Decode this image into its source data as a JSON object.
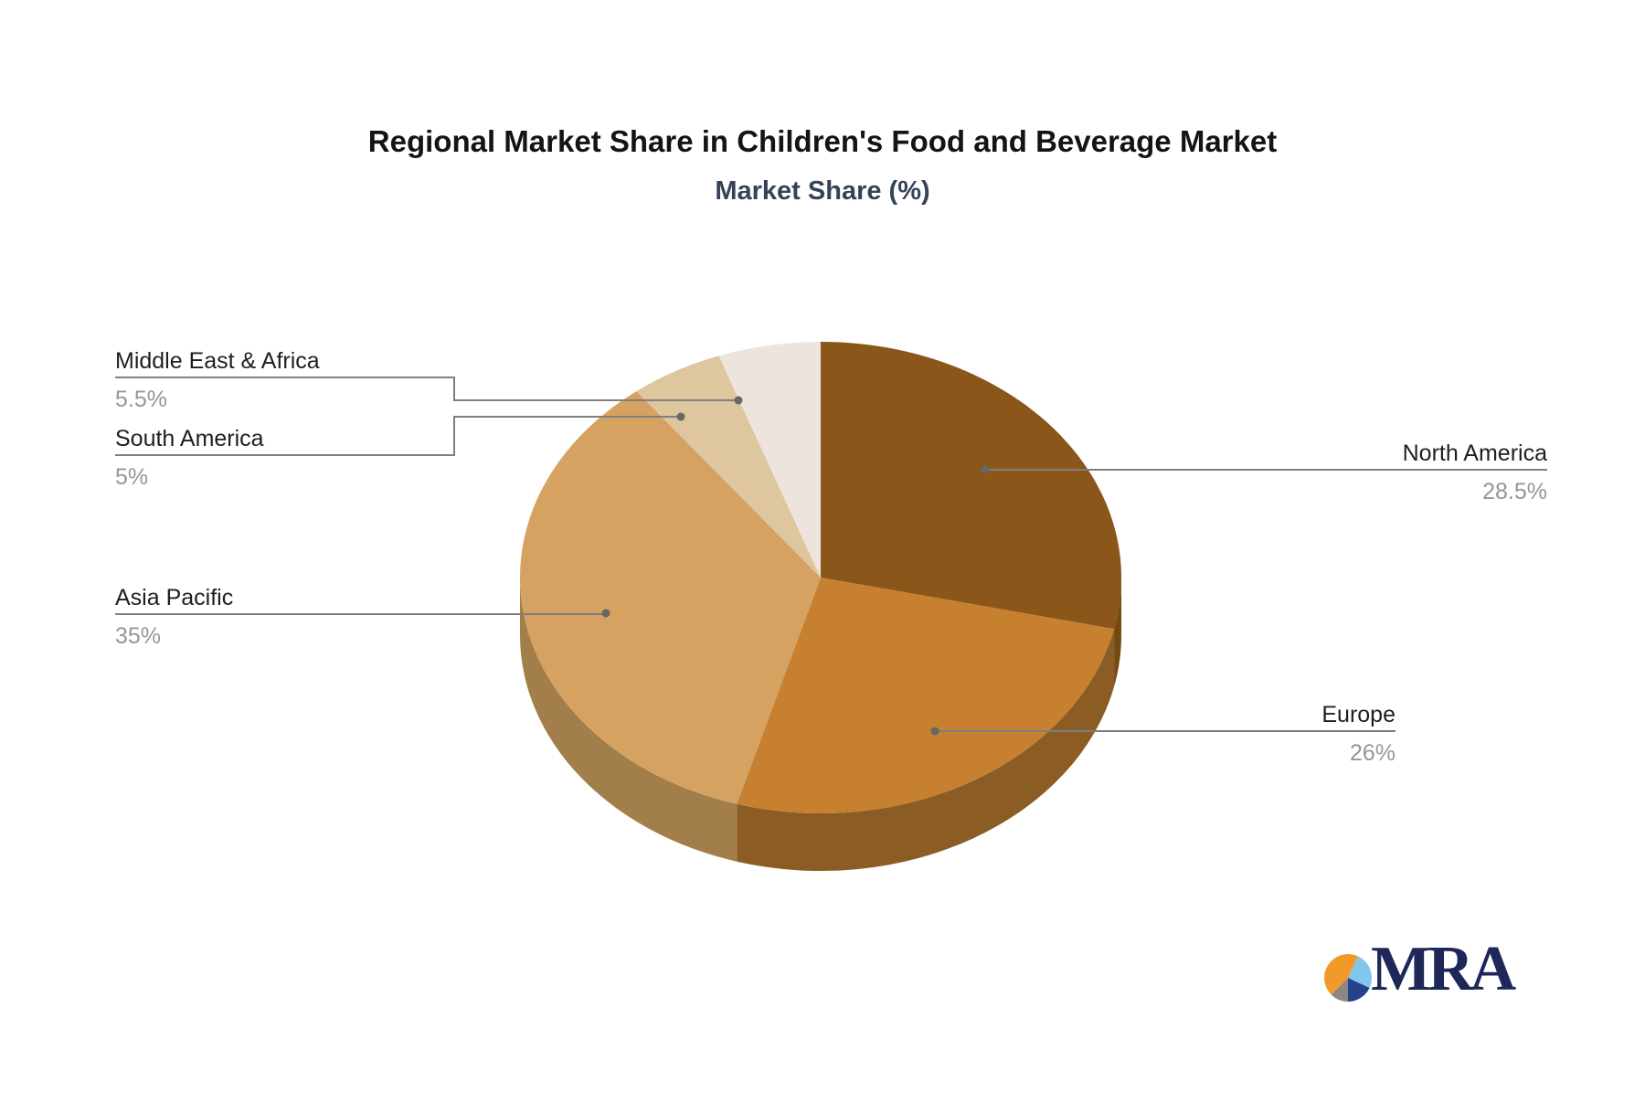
{
  "title": "Regional Market Share in Children's Food and Beverage Market",
  "subtitle": "Market Share (%)",
  "chart_data": {
    "type": "pie",
    "title": "Regional Market Share in Children's Food and Beverage Market",
    "subtitle": "Market Share (%)",
    "unit": "%",
    "style": "3d-pie",
    "start_angle_deg": 0,
    "direction": "clockwise",
    "connector_color": "#7F7F7F",
    "dot_color": "#666666",
    "slices": [
      {
        "label": "North America",
        "value": 28.5,
        "display": "28.5%",
        "color": "#8B5619",
        "side_color": "#724A12"
      },
      {
        "label": "Europe",
        "value": 26,
        "display": "26%",
        "color": "#C6802F",
        "side_color": "#8B5C24"
      },
      {
        "label": "Asia Pacific",
        "value": 35,
        "display": "35%",
        "color": "#D5A262",
        "side_color": "#A27E4A"
      },
      {
        "label": "South America",
        "value": 5,
        "display": "5%",
        "color": "#DEC69F",
        "side_color": "#AB9572"
      },
      {
        "label": "Middle East & Africa",
        "value": 5.5,
        "display": "5.5%",
        "color": "#EDE5DD",
        "side_color": "#B8AFA5"
      }
    ]
  },
  "logo": {
    "text": "MRA",
    "text_color": "#1D2758",
    "icon_colors": {
      "orange": "#F29A29",
      "light_blue": "#82C6EC",
      "navy": "#24438A",
      "gray": "#8E8680"
    }
  }
}
